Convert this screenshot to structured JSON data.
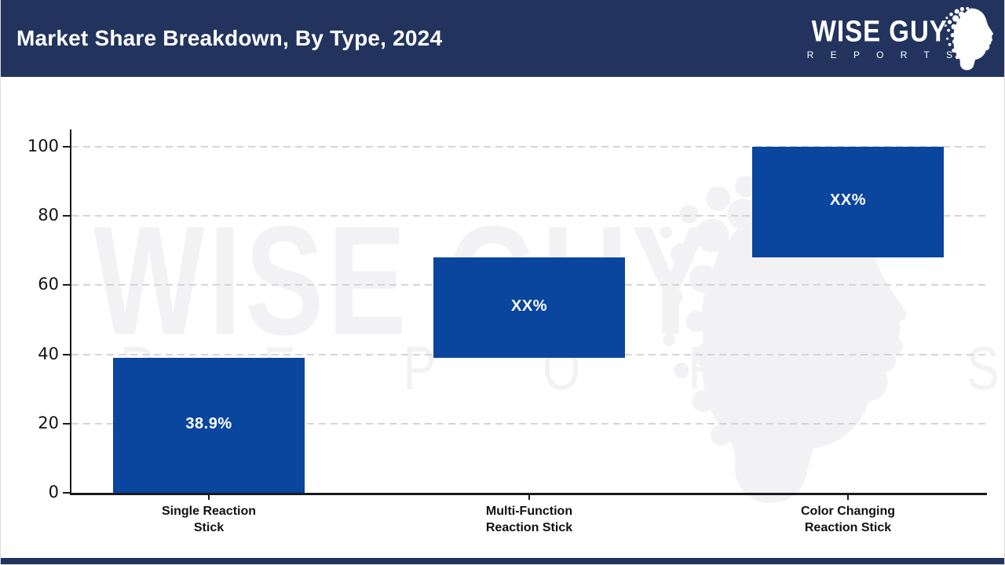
{
  "header": {
    "title": "Market Share Breakdown, By Type, 2024",
    "bg_color": "#22345e",
    "logo": {
      "name": "WISE GUY",
      "subtitle": "R E P O R T S"
    }
  },
  "watermark": {
    "line1": "WISE GUY",
    "line2": "R E P O R T S"
  },
  "chart_data": {
    "type": "bar",
    "subtype": "floating-segment-breakdown",
    "title": "Market Share Breakdown, By Type, 2024",
    "categories": [
      {
        "line1": "Single Reaction",
        "line2": "Stick"
      },
      {
        "line1": "Multi-Function",
        "line2": "Reaction Stick"
      },
      {
        "line1": "Color Changing",
        "line2": "Reaction Stick"
      }
    ],
    "bars": [
      {
        "label": "38.9%",
        "start": 0,
        "end": 38.9
      },
      {
        "label": "XX%",
        "start": 38.9,
        "end": 68.1
      },
      {
        "label": "XX%",
        "start": 68.1,
        "end": 100
      }
    ],
    "yticks": [
      0,
      20,
      40,
      60,
      80,
      100
    ],
    "ylim": [
      0,
      105
    ],
    "grid": "horizontal-dashed",
    "legend": "none",
    "xlabel": "",
    "ylabel": "",
    "bar_color": "#0a459e",
    "bar_label_color": "#ffffff",
    "gridline_color": "#d5d5d8",
    "axis_color": "#1a1a1a",
    "header_color": "#22345e"
  }
}
